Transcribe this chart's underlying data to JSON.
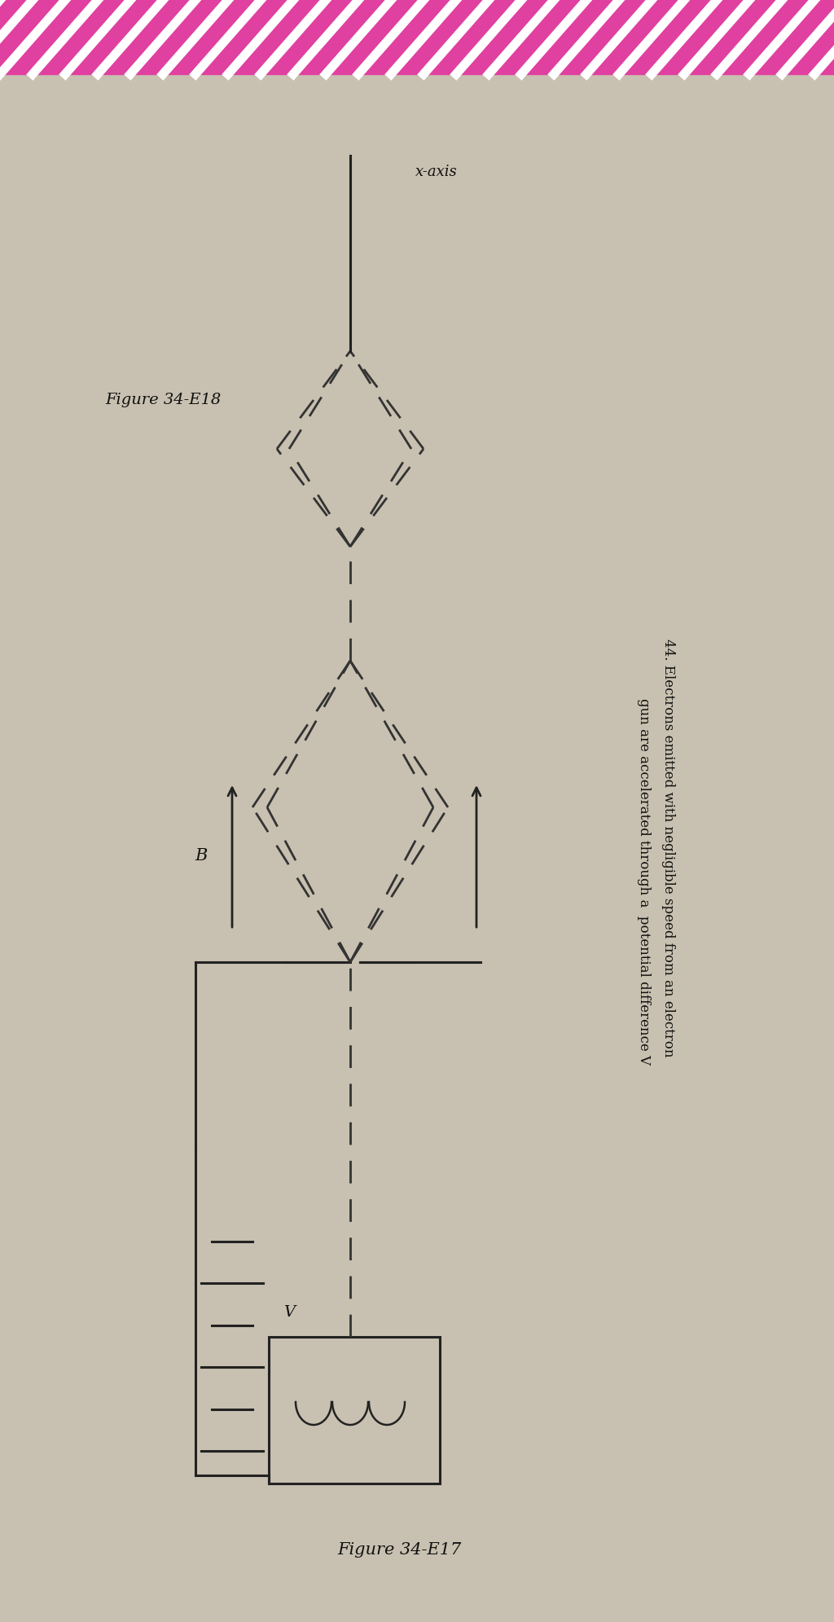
{
  "bg_color": "#c8c0b0",
  "lc": "#222222",
  "dc": "#333333",
  "text_col": "#111111",
  "title": "Figure 34-E17",
  "fig_label": "Figure 34-E18",
  "label_B": "B",
  "label_V": "V",
  "label_xaxis": "x-axis",
  "q_line1": "44. Electrons emitted with negligible speed from an electron",
  "q_line2": "    gun are accelerated through a  potential difference V",
  "fig_width": 10.24,
  "fig_height": 19.91,
  "dpi": 100
}
